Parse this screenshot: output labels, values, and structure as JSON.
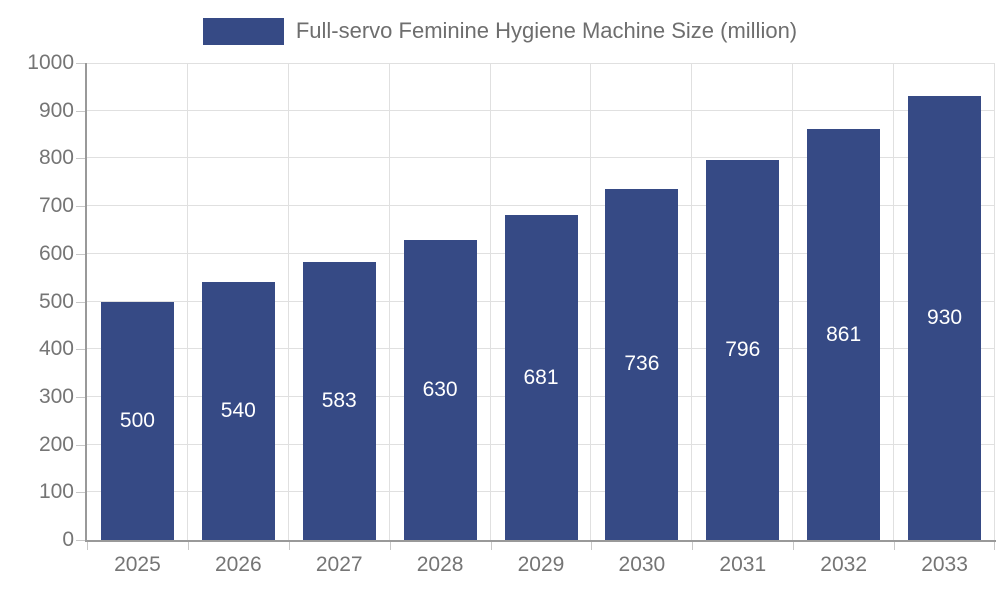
{
  "legend": {
    "label": "Full-servo Feminine Hygiene Machine Size (million)"
  },
  "chart_data": {
    "type": "bar",
    "title": "Full-servo Feminine Hygiene Machine Size (million)",
    "categories": [
      "2025",
      "2026",
      "2027",
      "2028",
      "2029",
      "2030",
      "2031",
      "2032",
      "2033"
    ],
    "series": [
      {
        "name": "Full-servo Feminine Hygiene Machine Size (million)",
        "values": [
          500,
          540,
          583,
          630,
          681,
          736,
          796,
          861,
          930
        ]
      }
    ],
    "values": [
      500,
      540,
      583,
      630,
      681,
      736,
      796,
      861,
      930
    ],
    "xlabel": "",
    "ylabel": "",
    "ylim": [
      0,
      1000
    ],
    "yticks": [
      0,
      100,
      200,
      300,
      400,
      500,
      600,
      700,
      800,
      900,
      1000
    ],
    "grid": true,
    "legend_position": "top",
    "bar_value_labels": true
  },
  "colors": {
    "bar": "#364A85",
    "bar_label": "#FFFFFF",
    "grid": "#E0E0E0",
    "axis": "#999999",
    "tick": "#C8C8C8",
    "axis_text": "#757575",
    "legend_text": "#6E6E6E",
    "background": "#FFFFFF"
  }
}
